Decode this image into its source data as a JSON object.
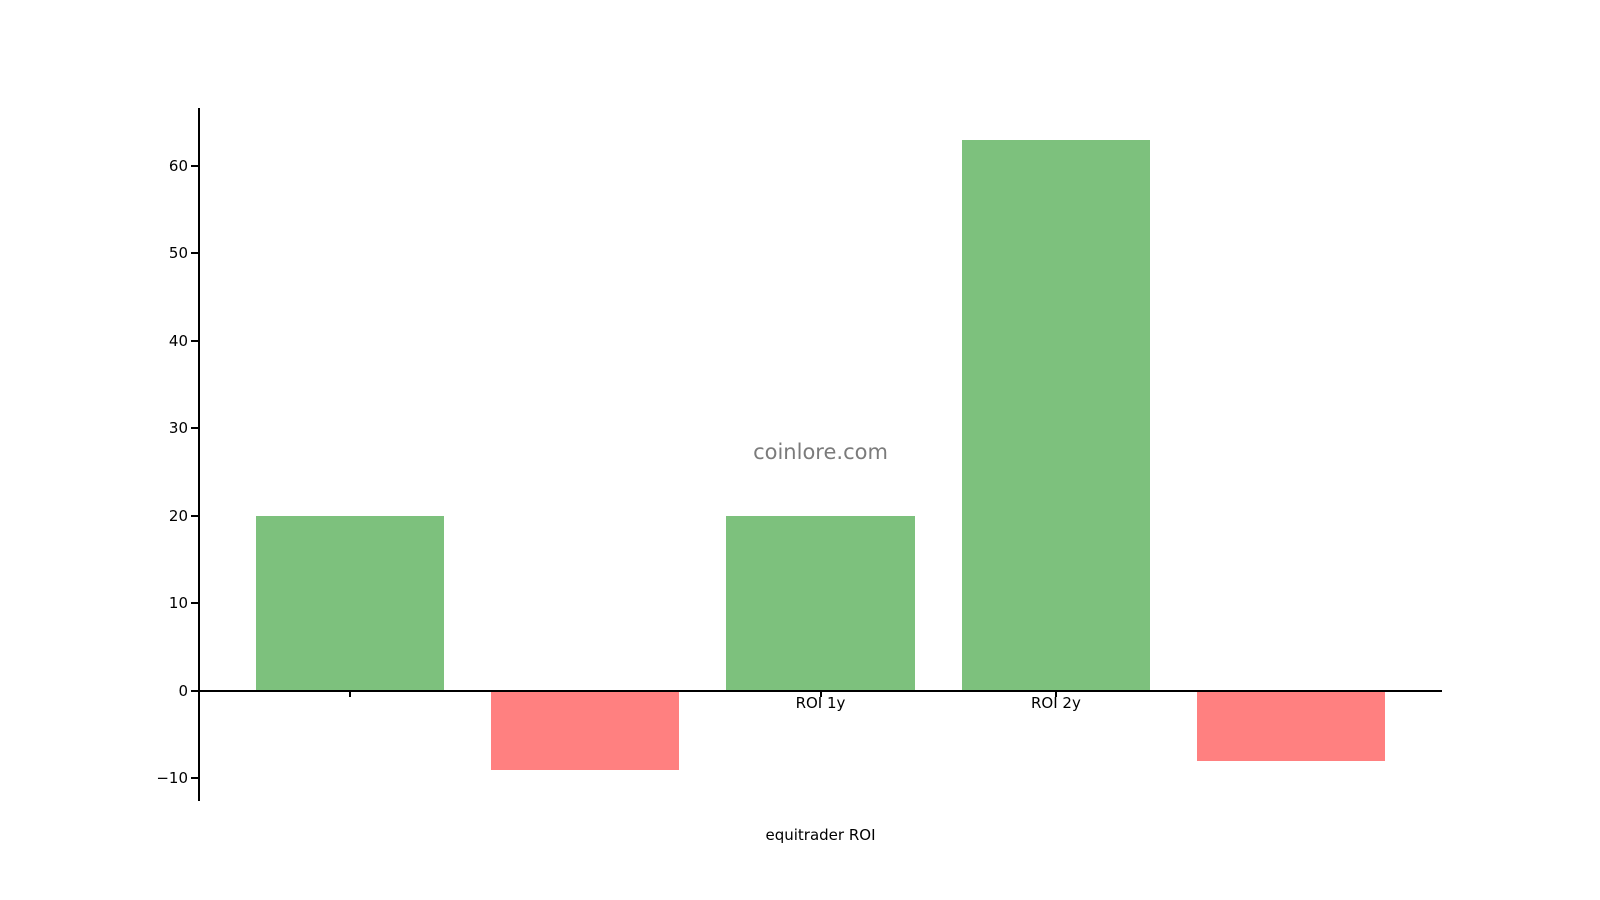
{
  "watermark": "coinlore.com",
  "chart_data": {
    "type": "bar",
    "title": "",
    "xlabel": "equitrader ROI",
    "ylabel": "",
    "categories": [
      "",
      "",
      "ROI 1y",
      "ROI 2y",
      ""
    ],
    "values": [
      20,
      -9,
      20,
      63,
      -8
    ],
    "bar_colors": {
      "positive": "#7dc17d",
      "negative": "#ff8080"
    },
    "yticks": [
      60,
      50,
      40,
      30,
      20,
      10,
      0,
      -10
    ],
    "ytick_labels": [
      "60",
      "50",
      "40",
      "30",
      "20",
      "10",
      "0",
      "−10"
    ],
    "ylim": [
      -12.6,
      66.6
    ],
    "bar_width_units": 0.8,
    "x_margin_units": 0.64,
    "grid": false,
    "legend": null
  }
}
